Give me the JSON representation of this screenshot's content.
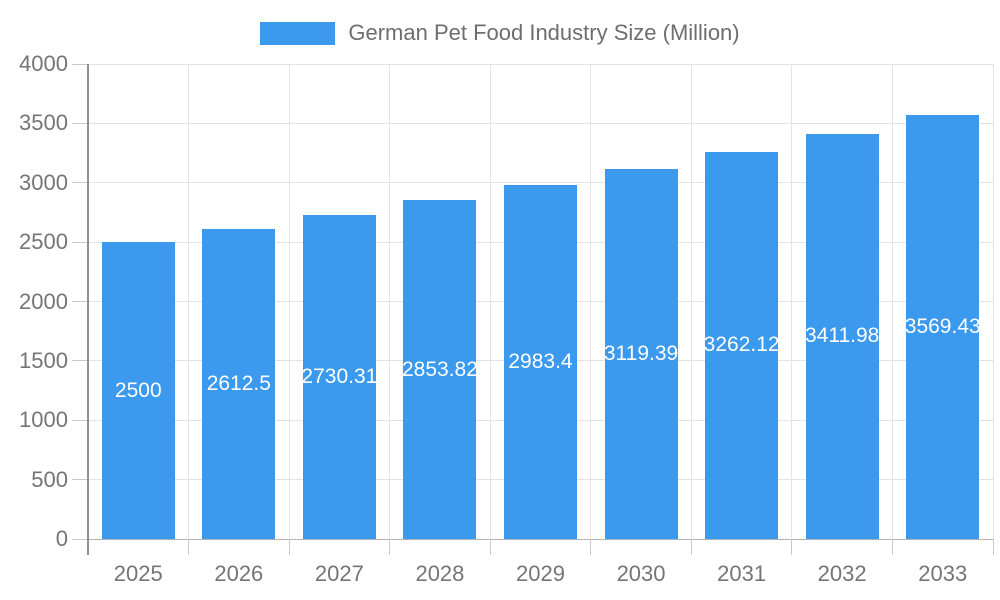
{
  "legend": {
    "items": [
      {
        "label": "German Pet Food Industry Size (Million)",
        "color": "#3B99EE"
      }
    ]
  },
  "chart_data": {
    "type": "bar",
    "title": "German Pet Food Industry Size (Million)",
    "categories": [
      "2025",
      "2026",
      "2027",
      "2028",
      "2029",
      "2030",
      "2031",
      "2032",
      "2033"
    ],
    "values": [
      2500,
      2612.5,
      2730.31,
      2853.82,
      2983.4,
      3119.39,
      3262.12,
      3411.98,
      3569.43
    ],
    "value_labels": [
      "2500",
      "2612.5",
      "2730.31",
      "2853.82",
      "2983.4",
      "3119.39",
      "3262.12",
      "3411.98",
      "3569.43"
    ],
    "xlabel": "",
    "ylabel": "",
    "ylim": [
      0,
      4000
    ],
    "yticks": [
      0,
      500,
      1000,
      1500,
      2000,
      2500,
      3000,
      3500,
      4000
    ],
    "grid": true,
    "legend_position": "top",
    "colors": {
      "bar": "#3B99EE",
      "bar_label": "#FFFFFF",
      "axis_text": "#757575",
      "legend_text": "#6E6E6E",
      "gridline": "#E3E3E3",
      "baseline": "#B3B3B3",
      "axis_line": "#8F8F8F",
      "tick": "#C9C9C9",
      "background": "#FFFFFF"
    }
  }
}
